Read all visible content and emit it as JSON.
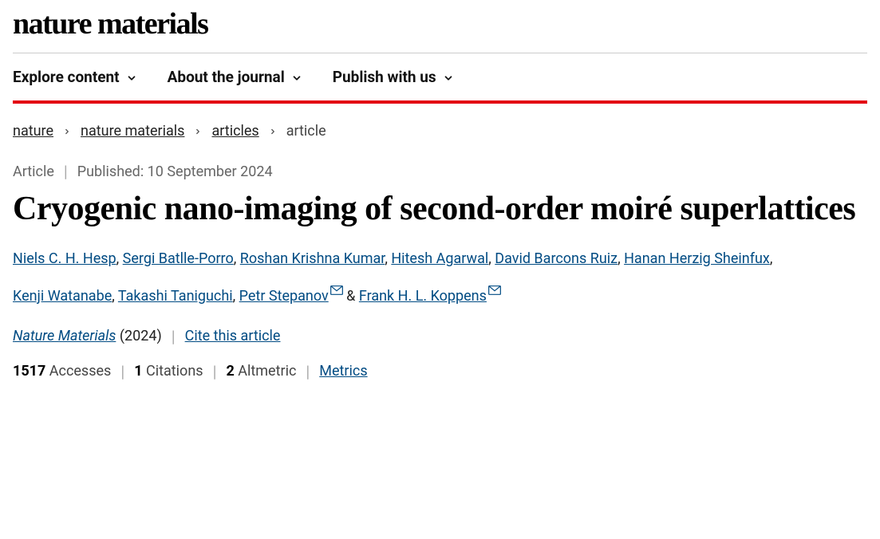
{
  "logo": "nature materials",
  "nav": [
    {
      "label": "Explore content"
    },
    {
      "label": "About the journal"
    },
    {
      "label": "Publish with us"
    }
  ],
  "breadcrumb": {
    "items": [
      {
        "label": "nature",
        "link": true
      },
      {
        "label": "nature materials",
        "link": true
      },
      {
        "label": "articles",
        "link": true
      },
      {
        "label": "article",
        "link": false
      }
    ]
  },
  "article": {
    "type_label": "Article",
    "published_label": "Published: 10 September 2024",
    "title": "Cryogenic nano-imaging of second-order moiré superlattices",
    "authors": [
      {
        "name": "Niels C. H. Hesp",
        "corresponding": false
      },
      {
        "name": "Sergi Batlle-Porro",
        "corresponding": false
      },
      {
        "name": "Roshan Krishna Kumar",
        "corresponding": false
      },
      {
        "name": "Hitesh Agarwal",
        "corresponding": false
      },
      {
        "name": "David Barcons Ruiz",
        "corresponding": false
      },
      {
        "name": "Hanan Herzig Sheinfux",
        "corresponding": false
      },
      {
        "name": "Kenji Watanabe",
        "corresponding": false
      },
      {
        "name": "Takashi Taniguchi",
        "corresponding": false
      },
      {
        "name": "Petr Stepanov",
        "corresponding": true
      },
      {
        "name": "Frank H. L. Koppens",
        "corresponding": true
      }
    ],
    "journal": "Nature Materials",
    "year": "(2024)",
    "cite_label": "Cite this article",
    "metrics": {
      "accesses_value": "1517",
      "accesses_label": "Accesses",
      "citations_value": "1",
      "citations_label": "Citations",
      "altmetric_value": "2",
      "altmetric_label": "Altmetric",
      "metrics_link_label": "Metrics"
    }
  },
  "colors": {
    "brand_red": "#e30613",
    "link_blue": "#004b83",
    "text_grey": "#666666"
  }
}
